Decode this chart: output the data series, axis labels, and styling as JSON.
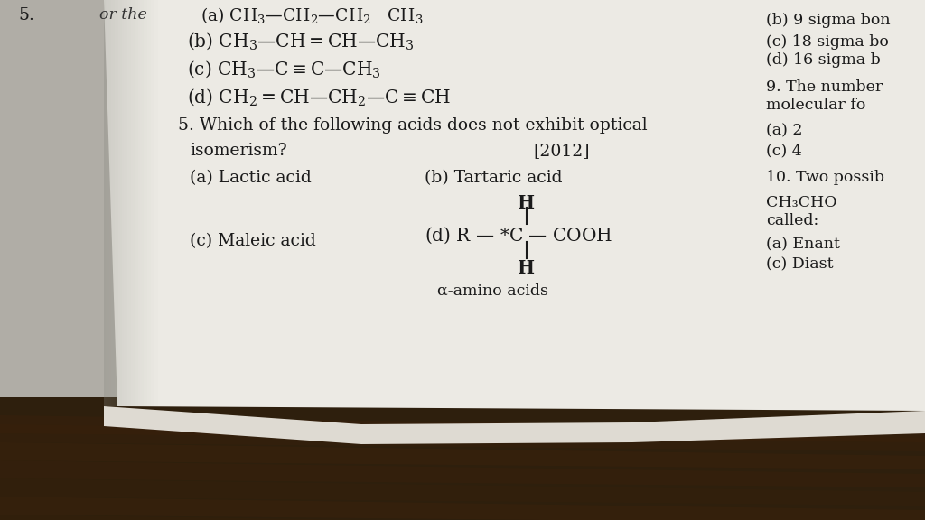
{
  "page_color": "#e8e6e0",
  "page_shadow_color": "#c5c3bc",
  "wood_color": "#3a2a18",
  "wood_color2": "#5c3d1e",
  "bg_color": "#2a1a0a",
  "text_color": "#1a1a1a",
  "top_formula_a": "(a) CH₃ — CH₂ —— CH₂",
  "top_formula_b": "(b) CH₃ — CH = CH — CH₃",
  "top_formula_c": "(c) CH₃ — C ≡ C — CH₃",
  "top_formula_d": "(d) CH₂ = CH — CH₂ — C ≡ CH",
  "q5_line1": "5. Which of the following acids does not exhibit optical",
  "q5_line2": "isomerism?",
  "year": "[2012]",
  "opt_a": "(a) Lactic acid",
  "opt_b": "(b) Tartaric acid",
  "opt_c": "(c) Maleic acid",
  "opt_d_pre": "(d) R — *C — COOH",
  "h_label": "H",
  "alpha_amino": "α-amino acids",
  "right_texts": [
    [
      "(b) 9 sigma bon",
      14
    ],
    [
      "(c) 18 sigma bo",
      38
    ],
    [
      "(d) 16 sigma b",
      58
    ],
    [
      "9. The number",
      88
    ],
    [
      "molecular fo",
      108
    ],
    [
      "(a) 2",
      136
    ],
    [
      "(c) 4",
      158
    ],
    [
      "10. Two possib",
      188
    ],
    [
      "CH₃CHO",
      216
    ],
    [
      "called:",
      236
    ],
    [
      "(a) Enant",
      262
    ],
    [
      "(c) Diast",
      284
    ]
  ],
  "left_top_texts": [
    [
      "5.",
      14
    ],
    [
      "or the",
      14
    ]
  ],
  "font_size": 13.5
}
